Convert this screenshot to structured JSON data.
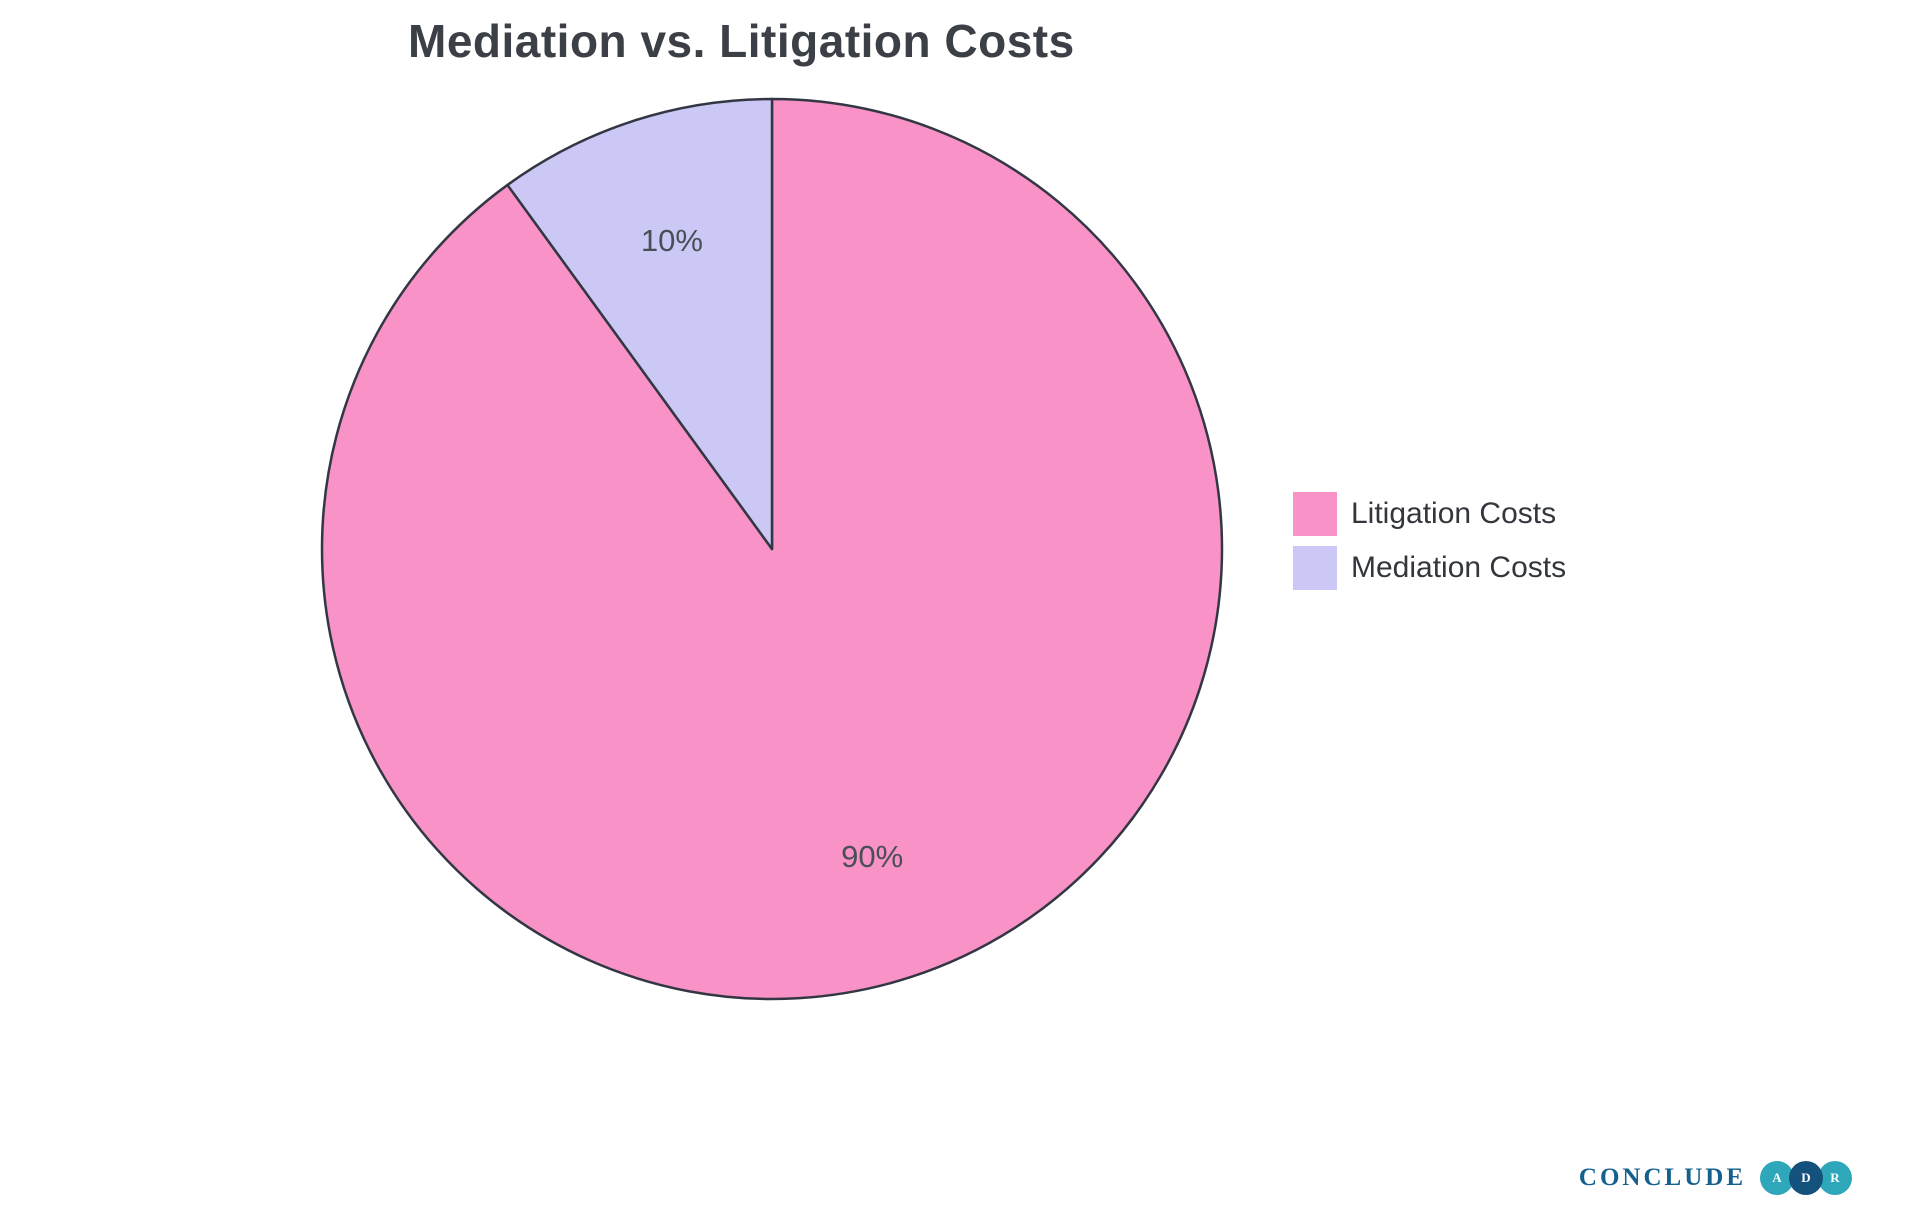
{
  "chart_data": {
    "type": "pie",
    "title": "Mediation vs. Litigation Costs",
    "categories": [
      "Litigation Costs",
      "Mediation Costs"
    ],
    "values": [
      90,
      10
    ],
    "unit": "percent",
    "slice_labels": [
      "90%",
      "10%"
    ],
    "colors": [
      "#F892C7",
      "#CBC8F6"
    ],
    "stroke_color": "#333744",
    "start_angle_deg": 0,
    "direction": "clockwise",
    "legend_position": "right",
    "label_radius_fraction": 0.72
  },
  "legend": {
    "items": [
      {
        "label": "Litigation Costs",
        "color": "#F892C7"
      },
      {
        "label": "Mediation Costs",
        "color": "#CBC8F6"
      }
    ]
  },
  "branding": {
    "wordmark": "CONCLUDE",
    "wordmark_color": "#15618e",
    "badges": [
      {
        "letter": "A",
        "color": "#2ea7bb"
      },
      {
        "letter": "D",
        "color": "#14527d"
      },
      {
        "letter": "R",
        "color": "#2ea7bb"
      }
    ]
  }
}
